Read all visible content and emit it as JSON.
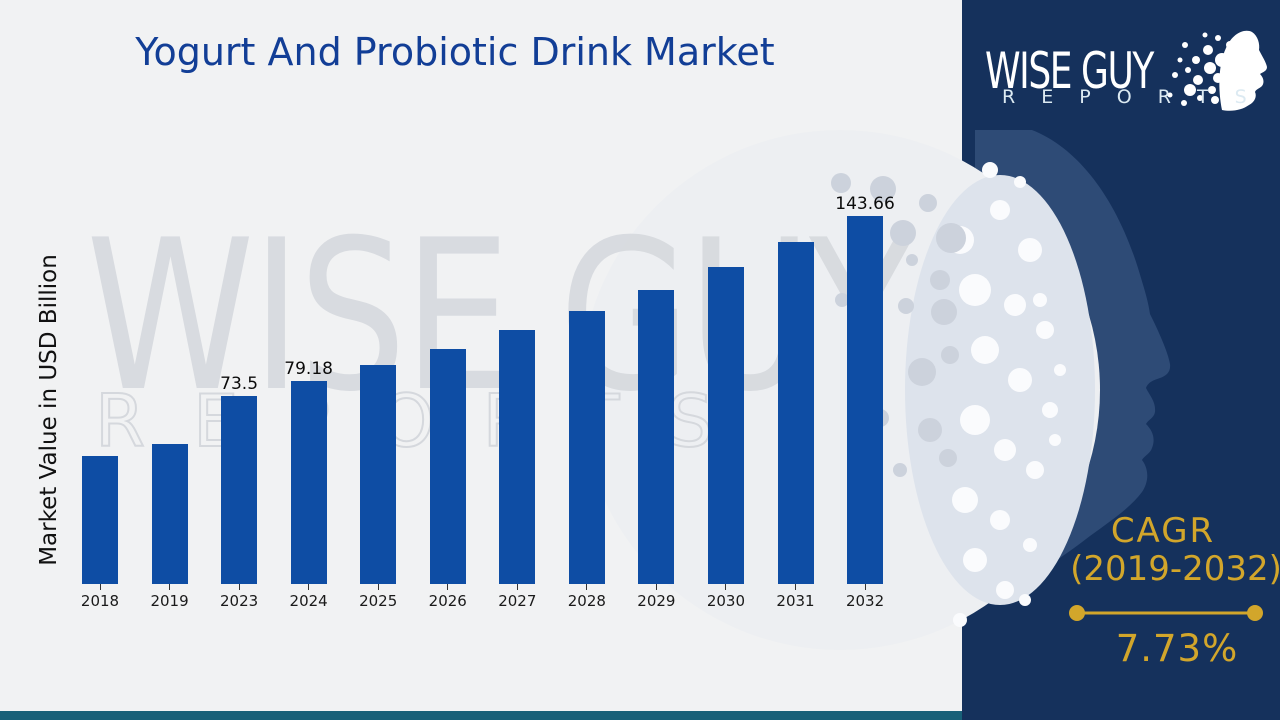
{
  "title": "Yogurt And Probiotic Drink Market",
  "y_axis_label": "Market Value in USD Billion",
  "brand": {
    "wordmark": "WISE GUY",
    "subtext": "R E P O R T S"
  },
  "watermark": {
    "line1": "WISE GUY",
    "line2": "REPORTS"
  },
  "cagr": {
    "heading": "CAGR",
    "range": "(2019-2032)",
    "value": "7.73%"
  },
  "colors": {
    "bg": "#f1f2f3",
    "bar": "#0e4da4",
    "title": "#123e96",
    "panel": "#15315c",
    "face": "#2e4b76",
    "gold": "#d2a62b",
    "teal": "#186078",
    "watermark": "#d6d9de",
    "dots_gray": "#ccd2dc",
    "dots_white": "#fafbfd"
  },
  "chart_data": {
    "type": "bar",
    "title": "Yogurt And Probiotic Drink Market",
    "xlabel": "",
    "ylabel": "Market Value in USD Billion",
    "categories": [
      "2018",
      "2019",
      "2023",
      "2024",
      "2025",
      "2026",
      "2027",
      "2028",
      "2029",
      "2030",
      "2031",
      "2032"
    ],
    "values": [
      50.0,
      54.5,
      73.5,
      79.18,
      85.3,
      91.9,
      99.0,
      106.7,
      114.9,
      123.8,
      133.4,
      143.66
    ],
    "data_labels": [
      null,
      null,
      "73.5",
      "79.18",
      null,
      null,
      null,
      null,
      null,
      null,
      null,
      "143.66"
    ],
    "ylim": [
      0,
      160
    ],
    "grid": false,
    "legend": "none",
    "bar_color": "#0e4da4",
    "notes": "Values without printed data labels are estimated from bar heights; CAGR 7.73% for 2019-2032"
  }
}
